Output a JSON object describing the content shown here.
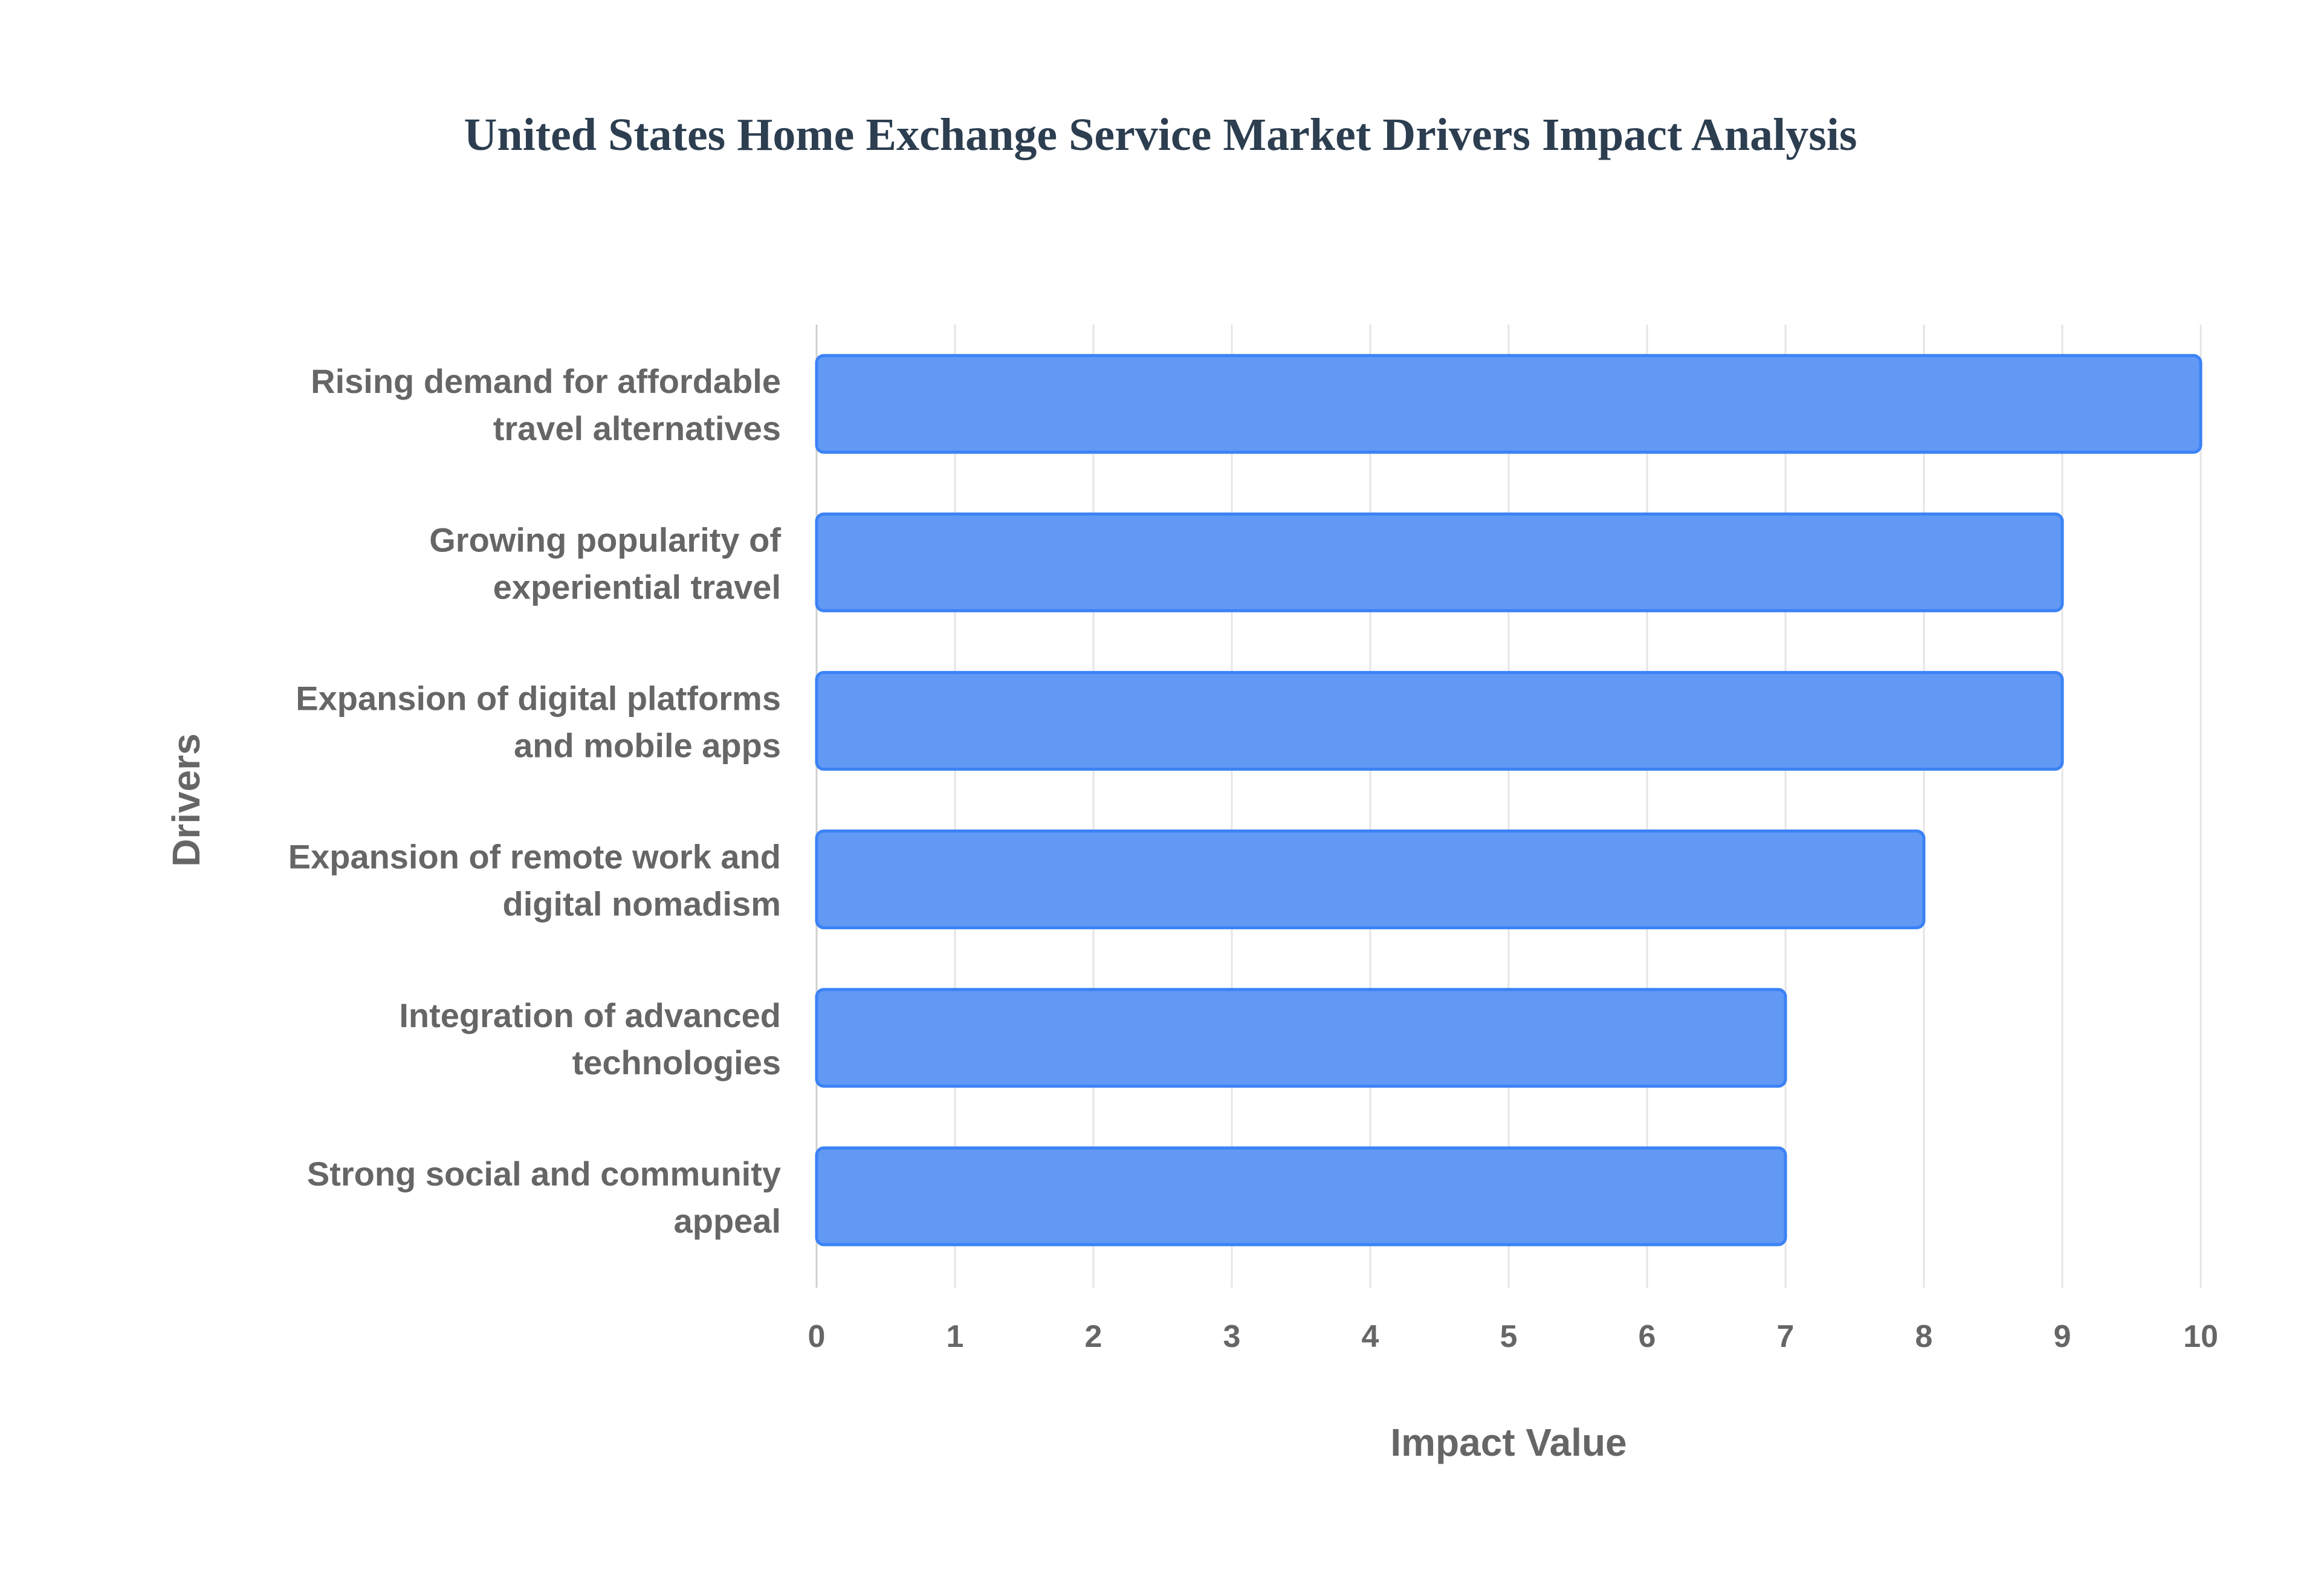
{
  "chart_data": {
    "type": "bar",
    "orientation": "horizontal",
    "title": "United States Home Exchange Service Market Drivers Impact Analysis",
    "xlabel": "Impact Value",
    "ylabel": "Drivers",
    "categories": [
      [
        "Rising demand for affordable",
        "travel alternatives"
      ],
      [
        "Growing popularity of",
        "experiential travel"
      ],
      [
        "Expansion of digital platforms",
        "and mobile apps"
      ],
      [
        "Expansion of remote work and",
        "digital nomadism"
      ],
      [
        "Integration of advanced",
        "technologies"
      ],
      [
        "Strong social and community",
        "appeal"
      ]
    ],
    "values": [
      10,
      9,
      9,
      8,
      7,
      7
    ],
    "xlim": [
      0,
      10
    ],
    "xticks": [
      "0",
      "1",
      "2",
      "3",
      "4",
      "5",
      "6",
      "7",
      "8",
      "9",
      "10"
    ],
    "grid": true,
    "colors": {
      "bar_fill": "#6199f5",
      "bar_border": "#3b82f6",
      "grid": "#e5e5e5"
    }
  }
}
